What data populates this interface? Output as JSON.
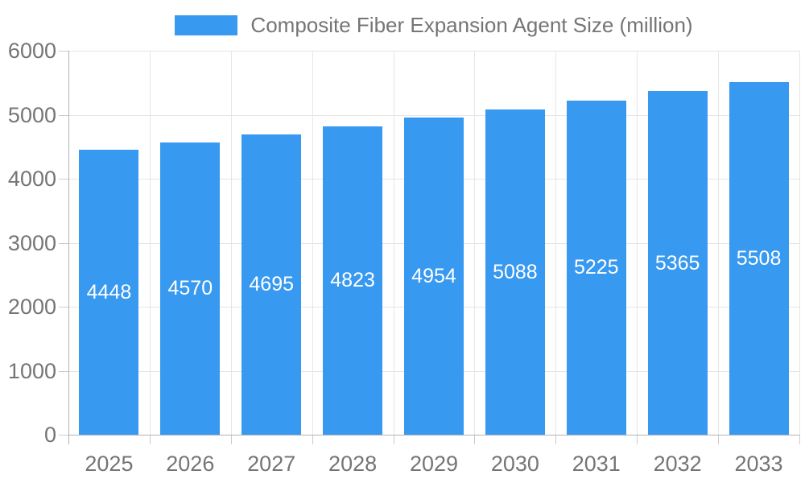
{
  "chart_data": {
    "type": "bar",
    "title": "",
    "legend": {
      "label": "Composite Fiber Expansion Agent Size (million)",
      "position": "top"
    },
    "categories": [
      "2025",
      "2026",
      "2027",
      "2028",
      "2029",
      "2030",
      "2031",
      "2032",
      "2033"
    ],
    "values": [
      4448,
      4570,
      4695,
      4823,
      4954,
      5088,
      5225,
      5365,
      5508
    ],
    "bar_value_labels": [
      "4448",
      "4570",
      "4695",
      "4823",
      "4954",
      "5088",
      "5225",
      "5365",
      "5508"
    ],
    "xlabel": "",
    "ylabel": "",
    "ylim": [
      0,
      6000
    ],
    "yticks": [
      0,
      1000,
      2000,
      3000,
      4000,
      5000,
      6000
    ],
    "grid": true,
    "colors": {
      "bar": "#3899f0",
      "bar_label_text": "#ffffff",
      "axis_text": "#757575",
      "grid_line": "#e6e6e6",
      "axis_line": "#b3b3b3",
      "tick_mark": "#cccccc",
      "background": "#ffffff"
    }
  }
}
